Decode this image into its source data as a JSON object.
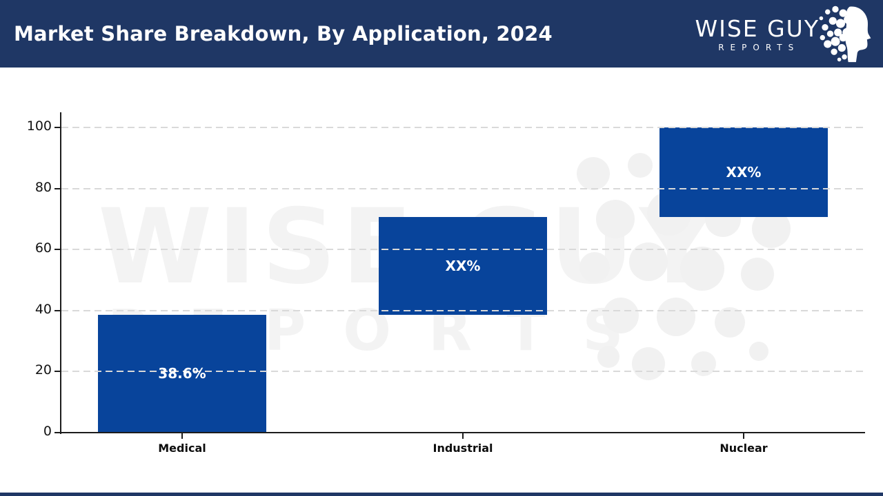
{
  "header": {
    "title": "Market Share Breakdown, By Application, 2024",
    "logo": {
      "line1": "WISE GUY",
      "line2": "REPORTS"
    }
  },
  "watermark": {
    "line1": "WISE GUY",
    "line2": "REPORTS"
  },
  "colors": {
    "header_bg": "#1f3765",
    "bar": "#08449b",
    "grid": "#d9d9d9",
    "axis": "#1c1c1c",
    "bar_label": "#ffffff",
    "tick_label": "#141414",
    "watermark": "#f3f3f3"
  },
  "chart_data": {
    "type": "bar",
    "variant": "floating_waterfall_segments",
    "title": "Market Share Breakdown, By Application, 2024",
    "categories": [
      "Medical",
      "Industrial",
      "Nuclear"
    ],
    "segments": [
      {
        "category": "Medical",
        "start": 0,
        "end": 38.6,
        "label": "38.6%"
      },
      {
        "category": "Industrial",
        "start": 38.6,
        "end": 70.6,
        "label": "XX%"
      },
      {
        "category": "Nuclear",
        "start": 70.6,
        "end": 100,
        "label": "XX%"
      }
    ],
    "xlabel": "",
    "ylabel": "",
    "ylim": [
      0,
      100
    ],
    "yticks": [
      0,
      20,
      40,
      60,
      80,
      100
    ],
    "grid": {
      "horizontal": true,
      "style": "dashed"
    },
    "legend": "none"
  }
}
